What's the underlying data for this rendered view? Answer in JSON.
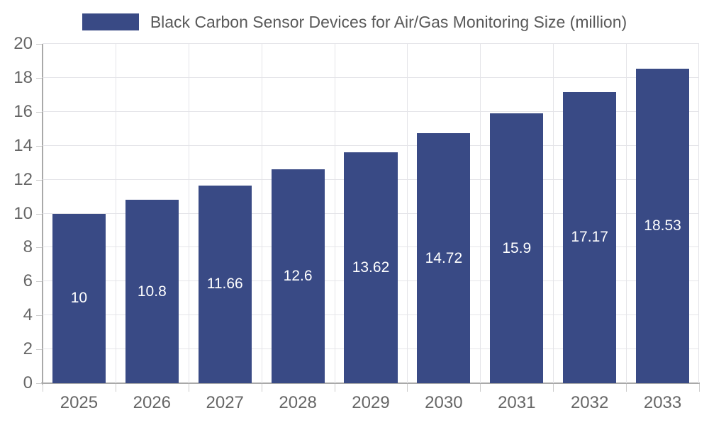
{
  "legend": {
    "label": "Black Carbon Sensor Devices for Air/Gas Monitoring Size (million)"
  },
  "chart_data": {
    "type": "bar",
    "title": "",
    "categories": [
      "2025",
      "2026",
      "2027",
      "2028",
      "2029",
      "2030",
      "2031",
      "2032",
      "2033"
    ],
    "values": [
      10,
      10.8,
      11.66,
      12.6,
      13.62,
      14.72,
      15.9,
      17.17,
      18.53
    ],
    "value_labels": [
      "10",
      "10.8",
      "11.66",
      "12.6",
      "13.62",
      "14.72",
      "15.9",
      "17.17",
      "18.53"
    ],
    "legend_entries": [
      "Black Carbon Sensor Devices for Air/Gas Monitoring Size (million)"
    ],
    "legend_position": "top",
    "xlabel": "",
    "ylabel": "",
    "ylim": [
      0,
      20
    ],
    "yticks": [
      0,
      2,
      4,
      6,
      8,
      10,
      12,
      14,
      16,
      18,
      20
    ],
    "grid": true
  },
  "colors": {
    "bar": "#394A85",
    "bar_value_text": "#FFFFFF",
    "axis_line": "#A9A9A9",
    "gridline": "#E4E4E8",
    "tick_mark": "#CCCCCC",
    "tick_label": "#666666",
    "legend_text": "#595959",
    "background": "#FFFFFF"
  }
}
